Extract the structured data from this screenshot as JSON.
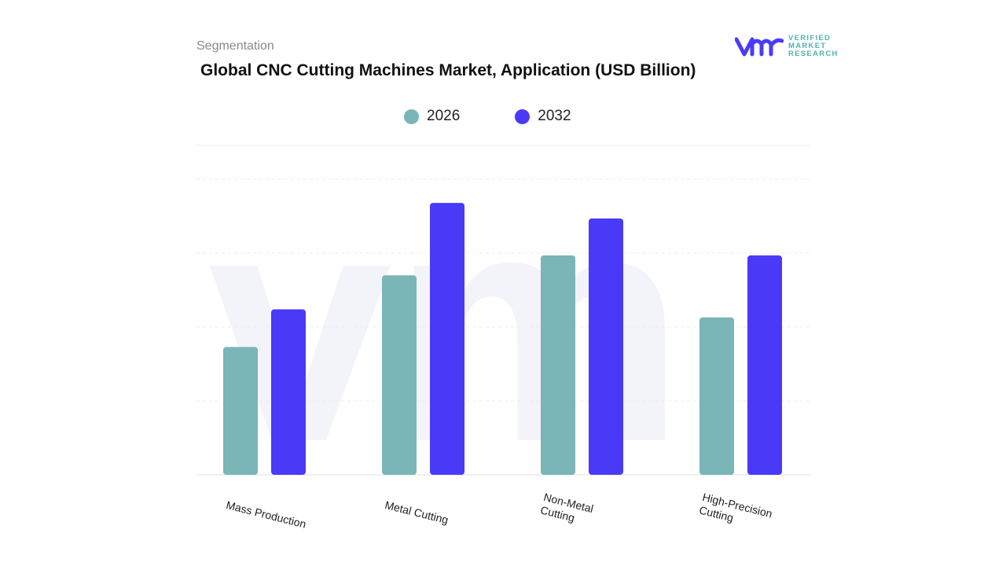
{
  "header": {
    "section": "Segmentation",
    "title": "Global CNC Cutting Machines Market, Application (USD Billion)"
  },
  "logo": {
    "text": [
      "VERIFIED",
      "MARKET",
      "RESEARCH"
    ],
    "brand_colors": [
      "#4a3cf5",
      "#4fb3b0"
    ]
  },
  "chart_data": {
    "type": "bar",
    "title": "Global CNC Cutting Machines Market, Application (USD Billion)",
    "categories": [
      "Mass Production",
      "Metal Cutting",
      "Non-Metal Cutting",
      "High-Precision Cutting"
    ],
    "series": [
      {
        "name": "2026",
        "color": "#7ab5b7",
        "values": [
          1.73,
          2.7,
          2.97,
          2.13
        ]
      },
      {
        "name": "2032",
        "color": "#4a3af7",
        "values": [
          2.24,
          3.68,
          3.47,
          2.97
        ]
      }
    ],
    "ylim": [
      0,
      4
    ],
    "grid": true,
    "legend": "top-center",
    "xlabel": "",
    "ylabel": ""
  }
}
